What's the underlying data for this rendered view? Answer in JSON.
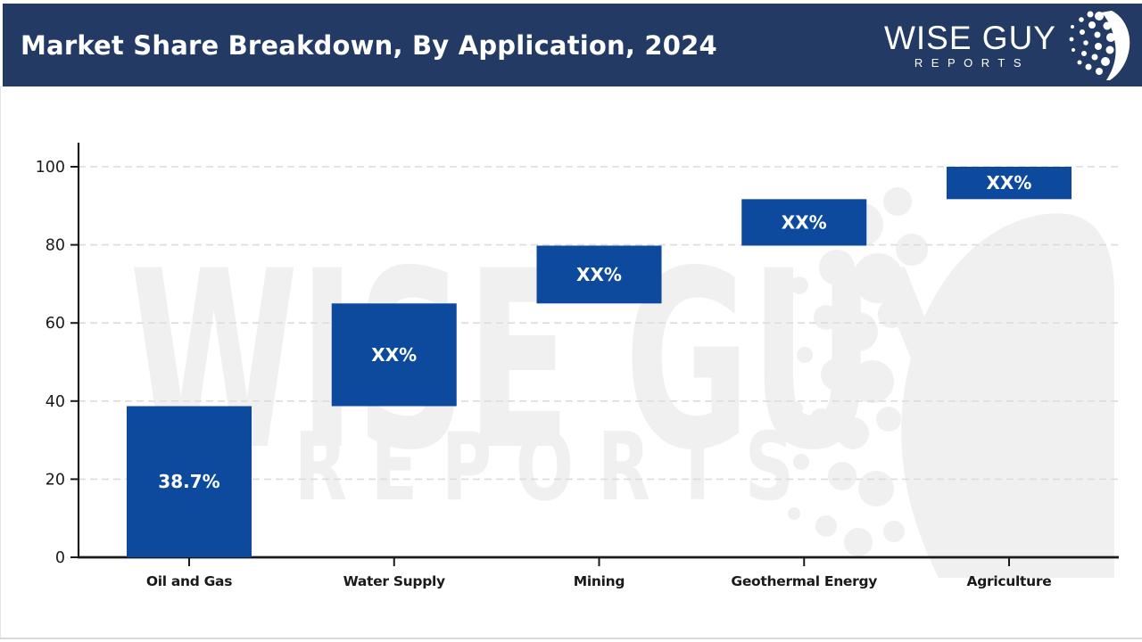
{
  "header": {
    "title": "Market Share Breakdown, By Application, 2024",
    "bg_color": "#223a64",
    "logo": {
      "line1": "WISE GUY",
      "line2": "REPORTS"
    }
  },
  "watermark": {
    "line1": "WISE GUY",
    "line2": "R E P O R T S",
    "color": "#f0f0f0"
  },
  "chart_data": {
    "type": "bar",
    "subtype": "waterfall",
    "title": "Market Share Breakdown, By Application, 2024",
    "xlabel": "",
    "ylabel": "",
    "categories": [
      "Oil and Gas",
      "Water Supply",
      "Mining",
      "Geothermal Energy",
      "Agriculture"
    ],
    "segments": [
      {
        "category": "Oil and Gas",
        "start": 0,
        "end": 38.7,
        "label": "38.7%"
      },
      {
        "category": "Water Supply",
        "start": 38.7,
        "end": 65.0,
        "label": "XX%"
      },
      {
        "category": "Mining",
        "start": 65.0,
        "end": 79.8,
        "label": "XX%"
      },
      {
        "category": "Geothermal Energy",
        "start": 79.8,
        "end": 91.7,
        "label": "XX%"
      },
      {
        "category": "Agriculture",
        "start": 91.7,
        "end": 100,
        "label": "XX%"
      }
    ],
    "ylim": [
      0,
      100
    ],
    "yticks": [
      0,
      20,
      40,
      60,
      80,
      100
    ],
    "grid": true,
    "grid_style": "dashed",
    "legend": "none",
    "bar_color": "#0d4a9e",
    "bar_label_color": "#ffffff",
    "axis_color": "#1a1a1a",
    "grid_color": "#dcdcdc",
    "tick_label_color": "#1a1a1a"
  }
}
